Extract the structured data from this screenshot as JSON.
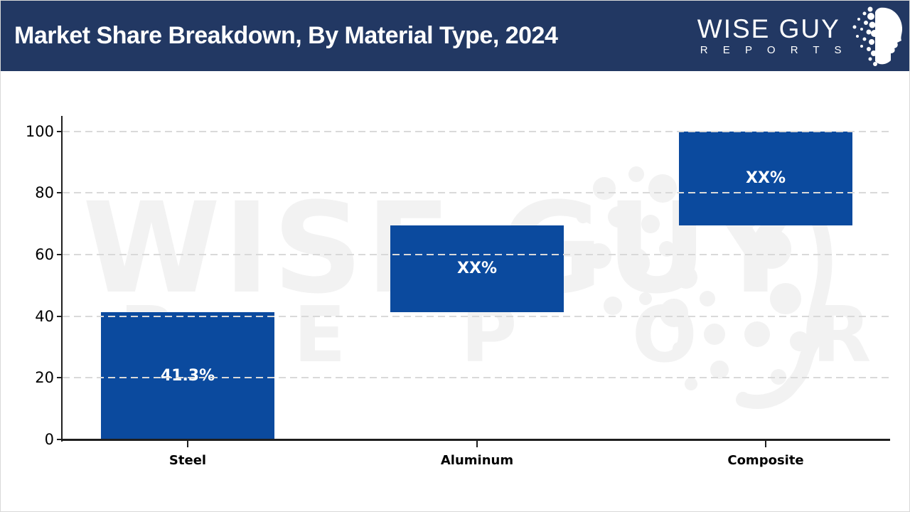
{
  "header": {
    "title": "Market Share Breakdown, By Material Type, 2024",
    "logo": {
      "line1": "WISE GUY",
      "line2": "R E P O R T S"
    }
  },
  "watermark": {
    "line1": "WISE GUY",
    "line2": "R E P O R T S"
  },
  "chart_data": {
    "type": "bar",
    "subtype": "waterfall-floating-bars",
    "title": "Market Share Breakdown, By Material Type, 2024",
    "categories": [
      "Steel",
      "Aluminum",
      "Composite"
    ],
    "bars": [
      {
        "category": "Steel",
        "start": 0,
        "end": 41.3,
        "label": "41.3%"
      },
      {
        "category": "Aluminum",
        "start": 41.3,
        "end": 69.5,
        "label": "XX%"
      },
      {
        "category": "Composite",
        "start": 69.5,
        "end": 100,
        "label": "XX%"
      }
    ],
    "yticks": [
      0,
      20,
      40,
      60,
      80,
      100
    ],
    "ylim": [
      0,
      105
    ],
    "xlabel": "",
    "ylabel": "",
    "grid": "horizontal-dashed",
    "legend": "none"
  },
  "colors": {
    "header_bg": "#223863",
    "bar": "#0b4a9e",
    "bar_label": "#ffffff",
    "grid": "#d9d9d9",
    "axis": "#1f1f1f",
    "tick_text": "#000000",
    "watermark": "#f2f2f2",
    "page_border": "#d9d9d9",
    "title_text": "#ffffff"
  }
}
